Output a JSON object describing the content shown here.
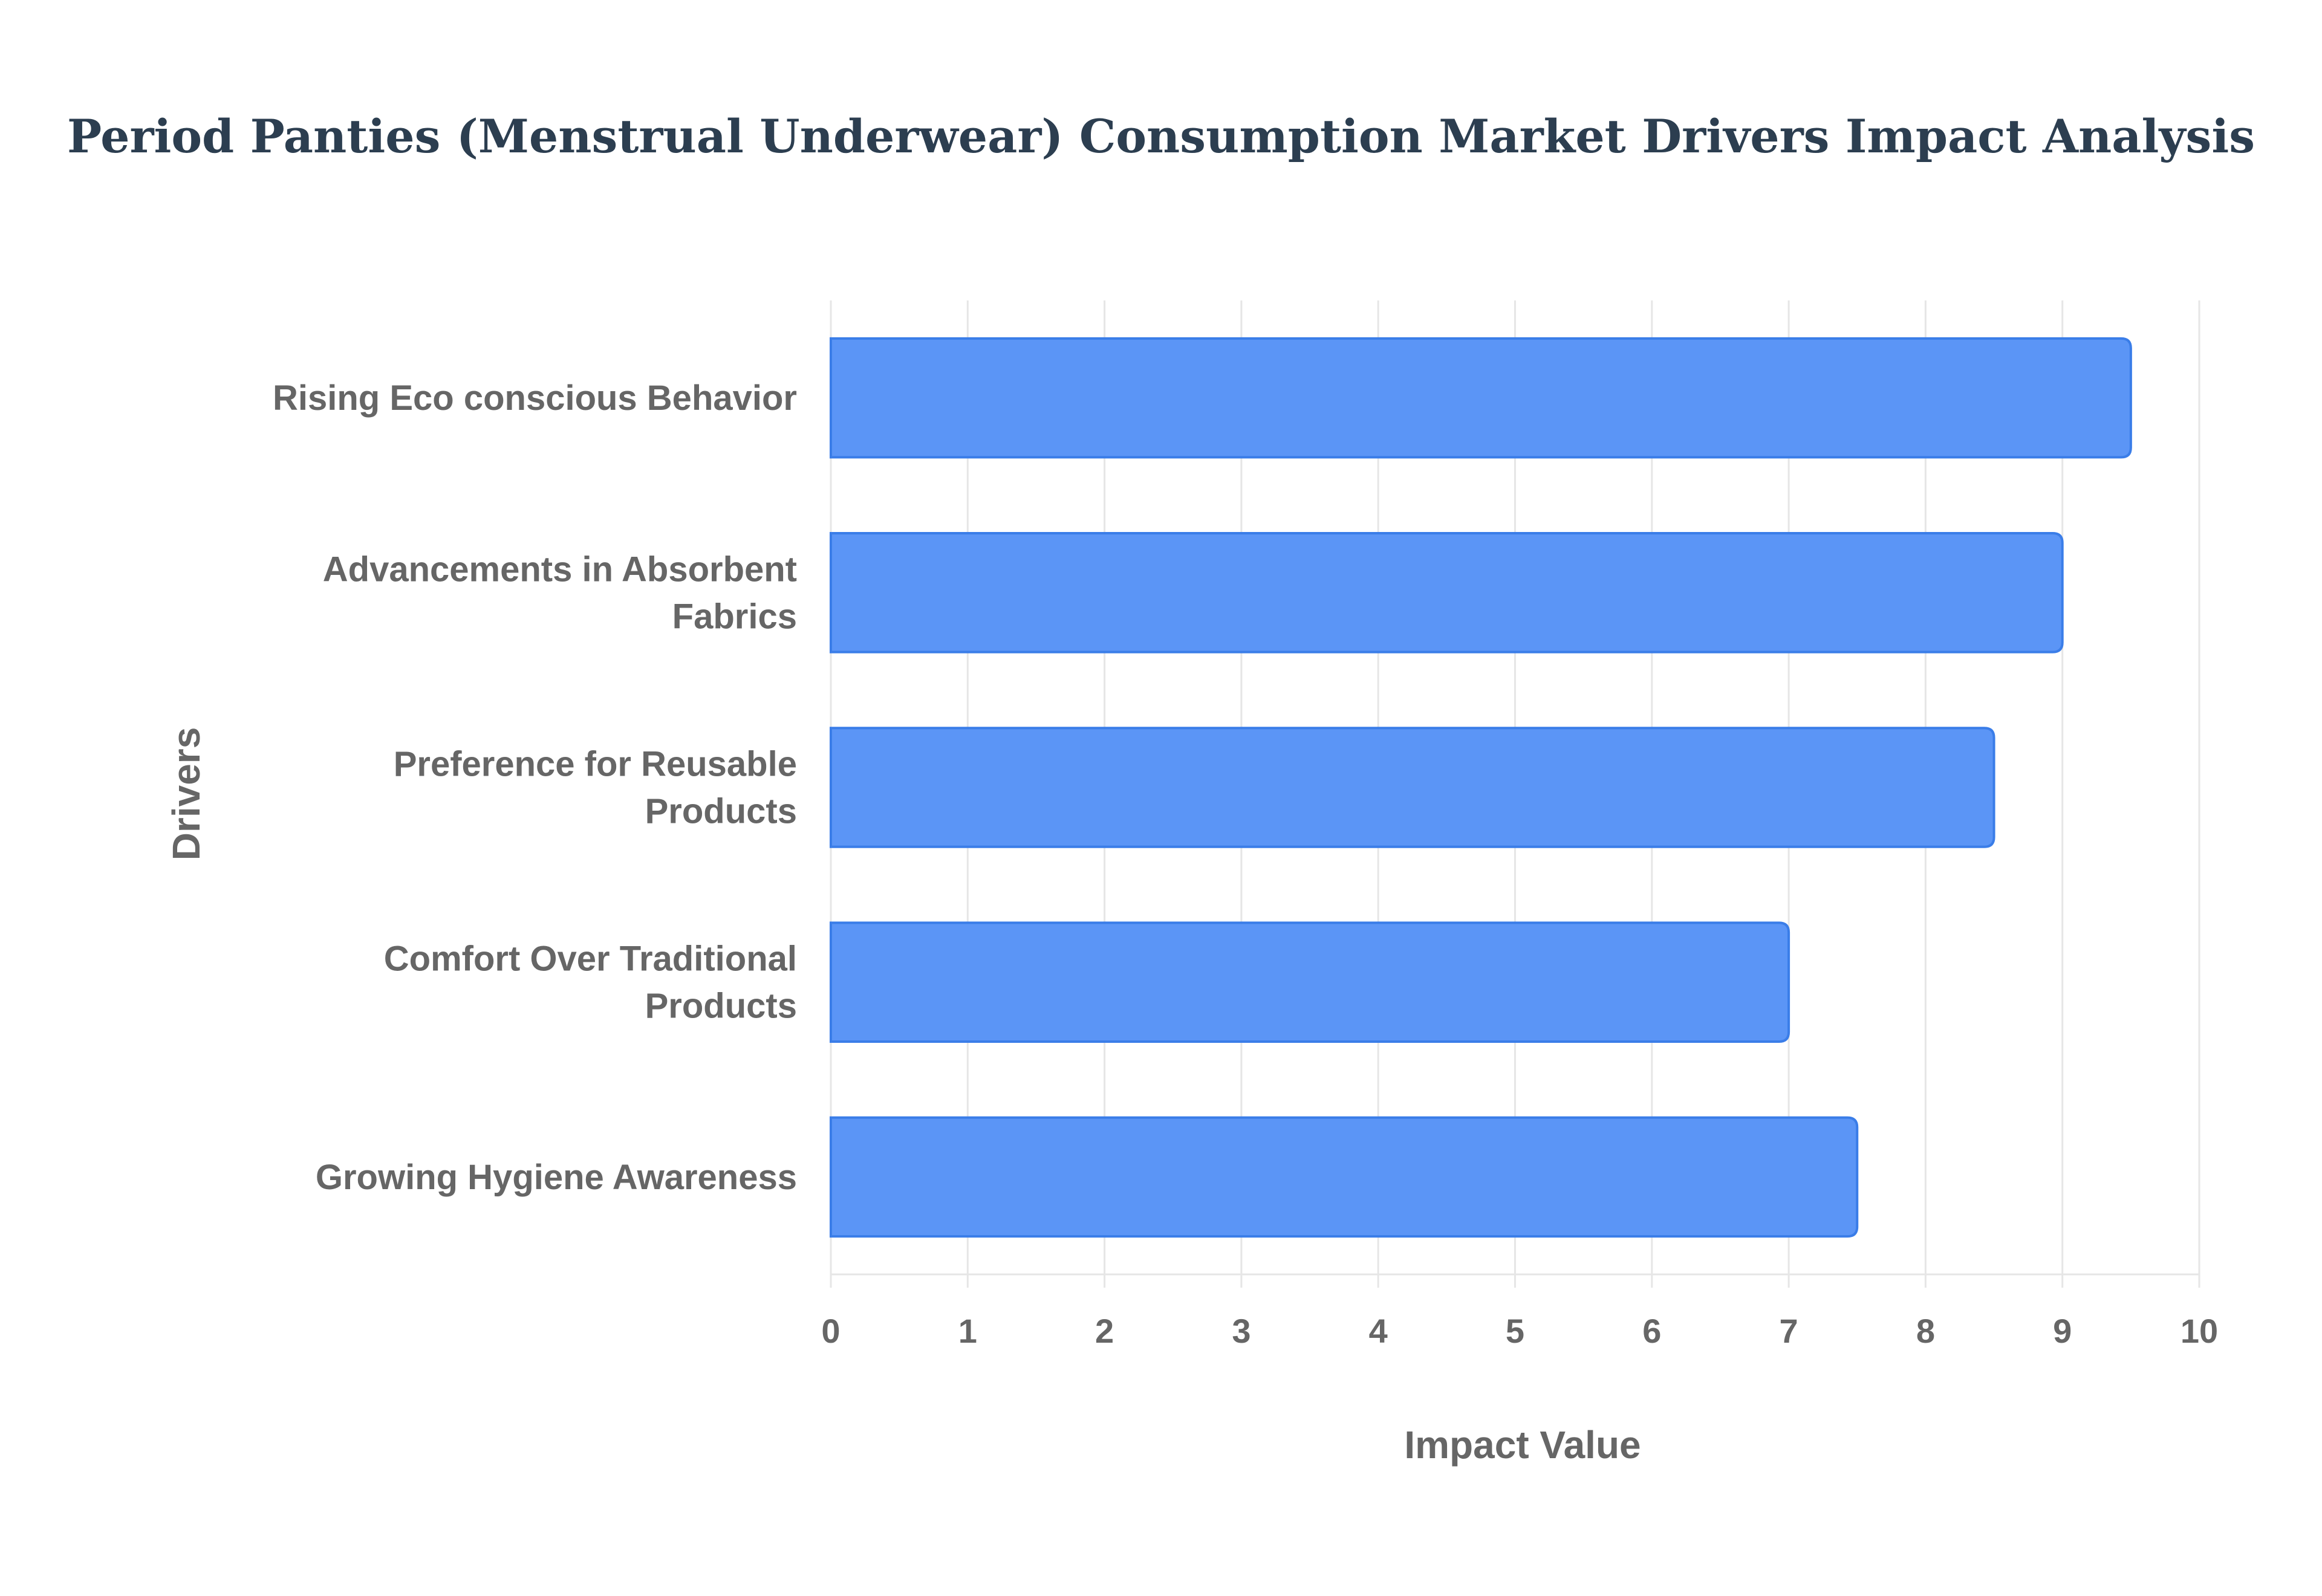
{
  "chart_data": {
    "type": "bar",
    "orientation": "horizontal",
    "title": "Period Panties (Menstrual Underwear) Consumption Market Drivers Impact Analysis",
    "xlabel": "Impact Value",
    "ylabel": "Drivers",
    "categories": [
      [
        "Rising Eco conscious Behavior"
      ],
      [
        "Advancements in Absorbent",
        "Fabrics"
      ],
      [
        "Preference for Reusable",
        "Products"
      ],
      [
        "Comfort Over Traditional",
        "Products"
      ],
      [
        "Growing Hygiene Awareness"
      ]
    ],
    "values": [
      9.5,
      9.0,
      8.5,
      7.0,
      7.5
    ],
    "xlim": [
      0,
      10
    ],
    "xticks": [
      "0",
      "1",
      "2",
      "3",
      "4",
      "5",
      "6",
      "7",
      "8",
      "9",
      "10"
    ],
    "grid": true,
    "legend": "none",
    "colors": {
      "bar_fill": "#5b95f6",
      "bar_stroke": "#3a7de8",
      "grid": "#e6e6e6",
      "title": "#2c3e50",
      "text": "#666666"
    }
  }
}
